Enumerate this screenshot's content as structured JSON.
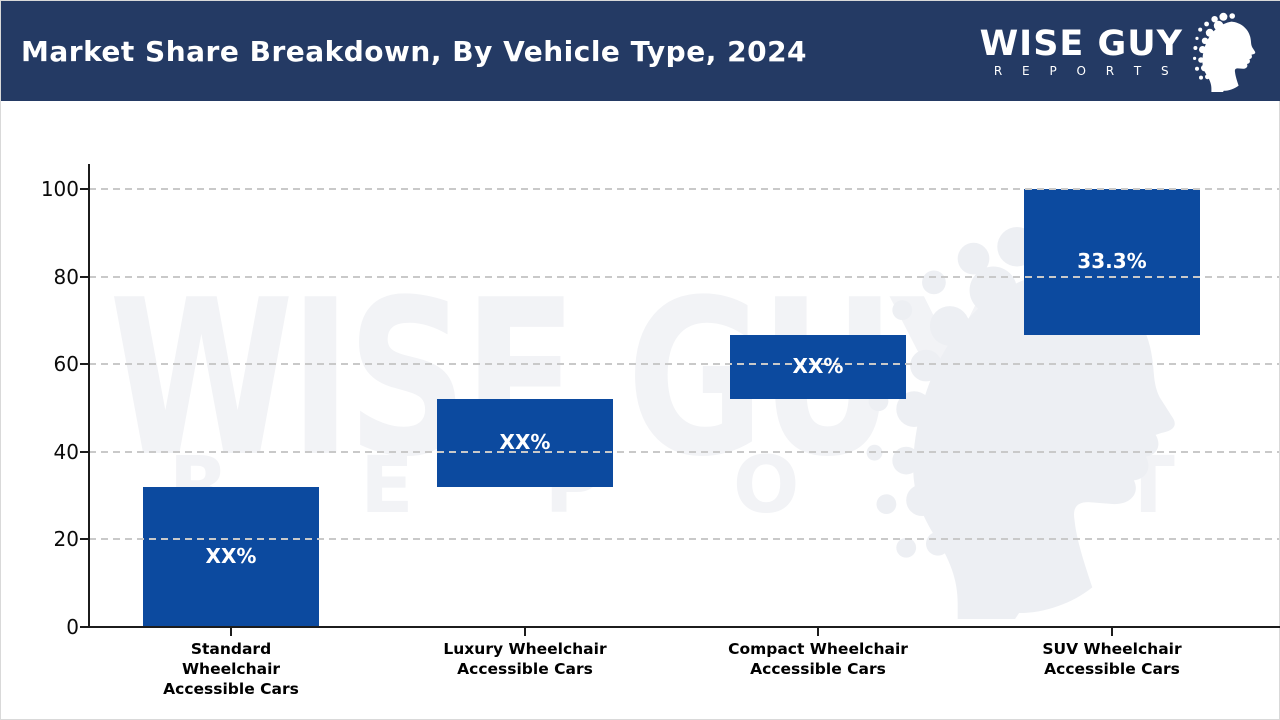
{
  "header": {
    "title": "Market Share Breakdown, By Vehicle Type, 2024",
    "logo": {
      "name": "WISE GUY",
      "sub": "R E P O R T S"
    }
  },
  "watermark": {
    "name": "WISE GUY",
    "sub": "R E P O R T S"
  },
  "chart_data": {
    "type": "bar",
    "subtype": "waterfall",
    "title": "Market Share Breakdown, By Vehicle Type, 2024",
    "categories": [
      [
        "Standard",
        "Wheelchair",
        "Accessible Cars"
      ],
      [
        "Luxury Wheelchair",
        "Accessible Cars"
      ],
      [
        "Compact Wheelchair",
        "Accessible Cars"
      ],
      [
        "SUV Wheelchair",
        "Accessible Cars"
      ]
    ],
    "values": [
      {
        "label": "XX%",
        "start": 0,
        "end": 32
      },
      {
        "label": "XX%",
        "start": 32,
        "end": 52
      },
      {
        "label": "XX%",
        "start": 52,
        "end": 66.7
      },
      {
        "label": "33.3%",
        "start": 66.7,
        "end": 100
      }
    ],
    "y_ticks": [
      0,
      20,
      40,
      60,
      80,
      100
    ],
    "ylim": [
      0,
      105
    ],
    "grid": "horizontal-dashed",
    "legend": "none",
    "bar_color": "#0c4a9f",
    "grid_color": "#c9c9c9"
  }
}
